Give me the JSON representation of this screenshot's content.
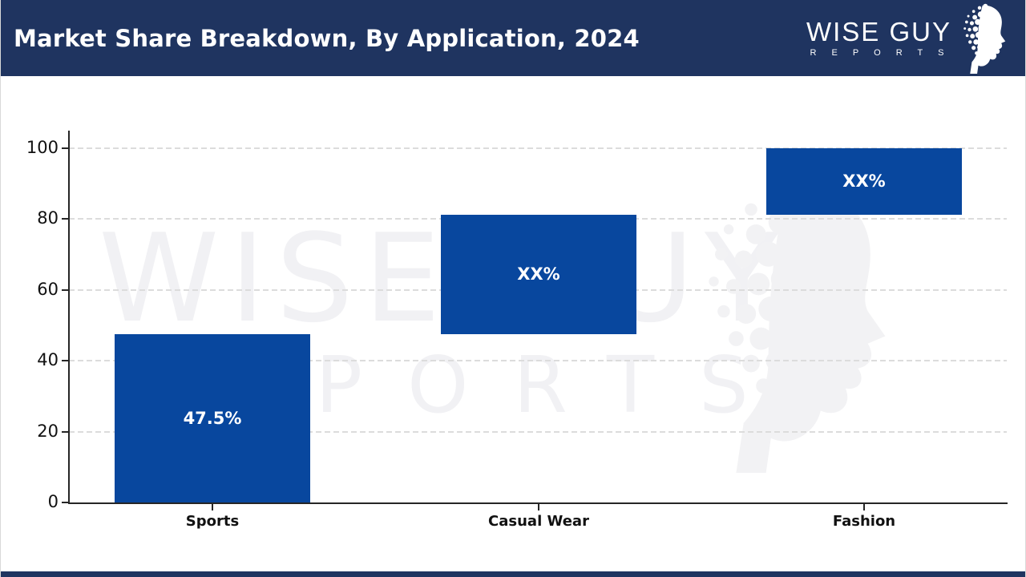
{
  "header": {
    "title": "Market Share Breakdown, By Application, 2024",
    "logo": {
      "wordmark": "WISE GUY",
      "subtext": "R E P O R T S"
    }
  },
  "watermark": {
    "line1": "WISE GUY",
    "line2": "REPORTS"
  },
  "chart_data": {
    "type": "bar",
    "variant": "floating-waterfall",
    "title": "Market Share Breakdown, By Application, 2024",
    "categories": [
      "Sports",
      "Casual Wear",
      "Fashion"
    ],
    "segments": [
      {
        "category": "Sports",
        "start": 0,
        "end": 47.5,
        "label": "47.5%"
      },
      {
        "category": "Casual Wear",
        "start": 47.5,
        "end": 81.25,
        "label": "XX%"
      },
      {
        "category": "Fashion",
        "start": 81.25,
        "end": 100,
        "label": "XX%"
      }
    ],
    "y_ticks": [
      0,
      20,
      40,
      60,
      80,
      100
    ],
    "ylim": [
      0,
      105
    ],
    "xlabel": "",
    "ylabel": "",
    "legend": "none",
    "grid": "horizontal-dashed",
    "colors": {
      "bar": "#08479e",
      "header_bg": "#1f3460",
      "grid": "#dcdcdc",
      "axis": "#262626",
      "bar_label": "#ffffff",
      "tick_label": "#111111"
    }
  }
}
